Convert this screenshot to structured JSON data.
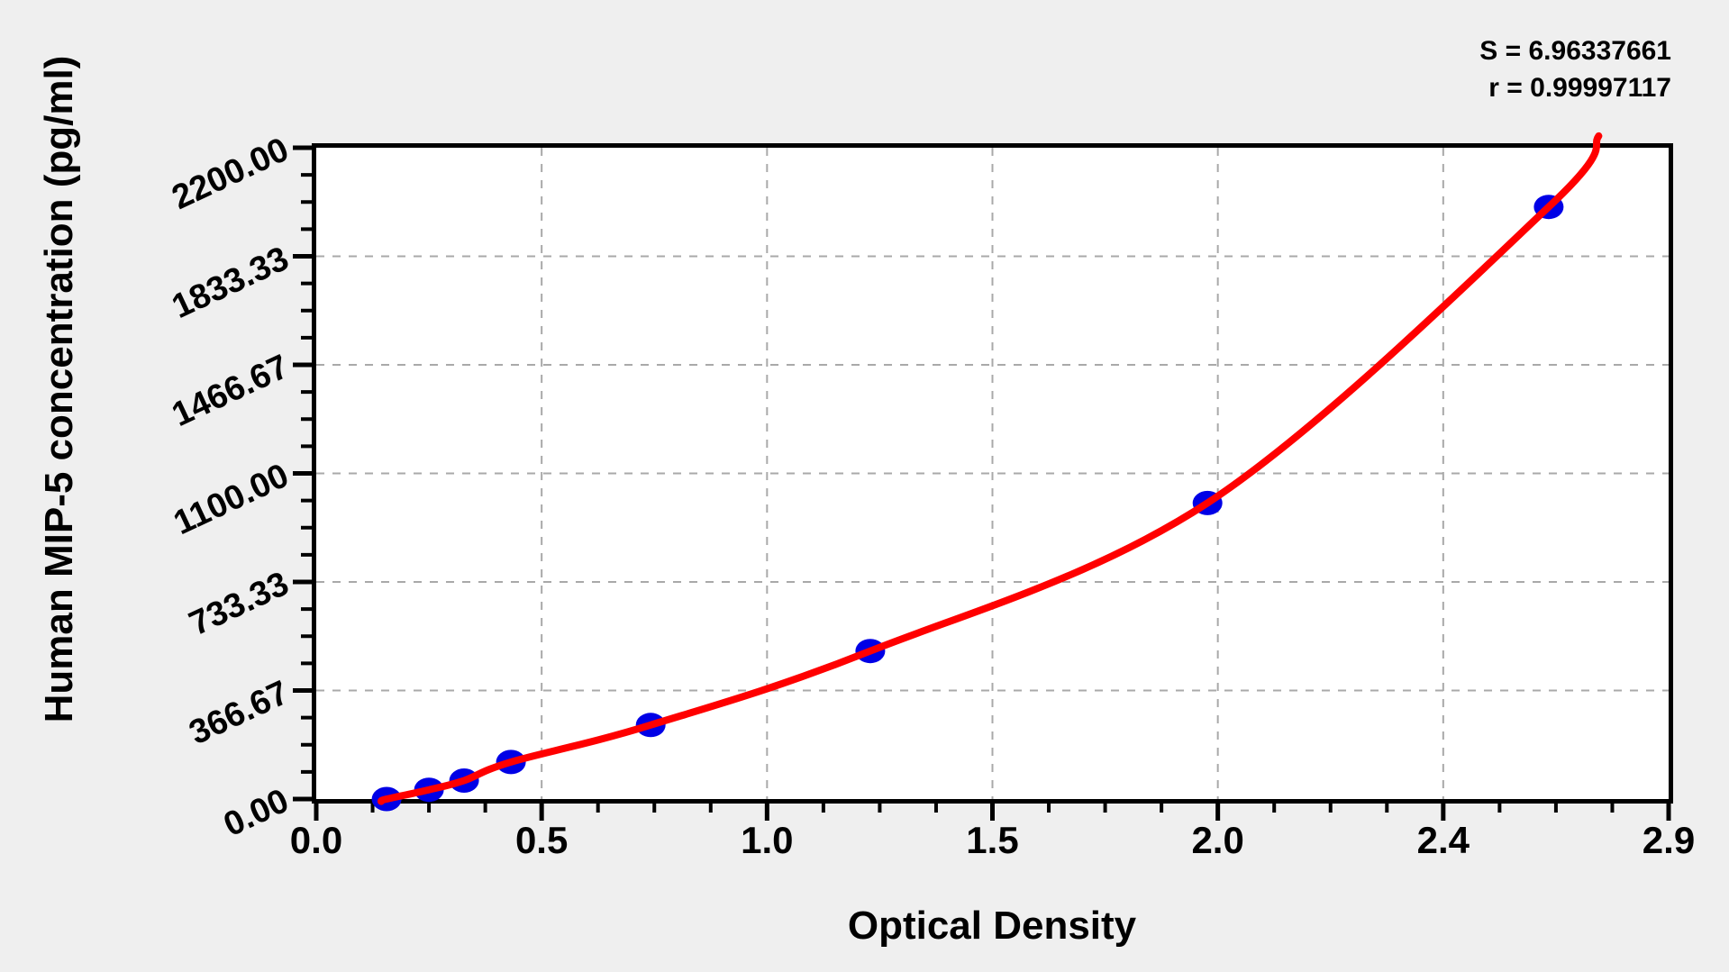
{
  "chart_data": {
    "type": "scatter",
    "title": "",
    "xlabel": "Optical Density",
    "ylabel": "Human MIP-5 concentration (pg/ml)",
    "x_axis": {
      "tick_values": [
        0,
        0.5,
        1.0,
        1.5,
        2.0,
        2.4,
        2.9
      ],
      "tick_labels": [
        "0.0",
        "0.5",
        "1.0",
        "1.5",
        "2.0",
        "2.4",
        "2.9"
      ],
      "minor_divisions": 4,
      "grid": "dashed"
    },
    "y_axis": {
      "tick_values": [
        2200,
        1833.33,
        1466.67,
        1100,
        733.33,
        366.67,
        0
      ],
      "tick_labels": [
        "2200.00",
        "1833.33",
        "1466.67",
        "1100.00",
        "733.33",
        "366.67",
        "0.00"
      ],
      "range": [
        0,
        2200
      ],
      "minor_divisions": 4,
      "grid": "dashed"
    },
    "series": [
      {
        "name": "standard-points",
        "points": [
          {
            "od": 0.156,
            "conc": 0
          },
          {
            "od": 0.25,
            "conc": 31.25
          },
          {
            "od": 0.328,
            "conc": 62.5
          },
          {
            "od": 0.432,
            "conc": 125
          },
          {
            "od": 0.742,
            "conc": 250
          },
          {
            "od": 1.229,
            "conc": 500
          },
          {
            "od": 1.977,
            "conc": 1000
          },
          {
            "od": 2.634,
            "conc": 2000
          }
        ]
      }
    ],
    "fit_curve": {
      "name": "regression-curve",
      "extension_start": {
        "od": 0.144,
        "conc": -8
      },
      "extension_end": {
        "od": 2.745,
        "conc": 2240
      }
    },
    "annotations": {
      "s_line": "S = 6.96337661",
      "r_line": "r = 0.99997117"
    },
    "colors": {
      "curve": "#ff0000",
      "marker": "#0000e6",
      "grid": "#a9a9a9",
      "axis": "#000000",
      "background": "#efefef",
      "plot_background": "#ffffff"
    }
  }
}
